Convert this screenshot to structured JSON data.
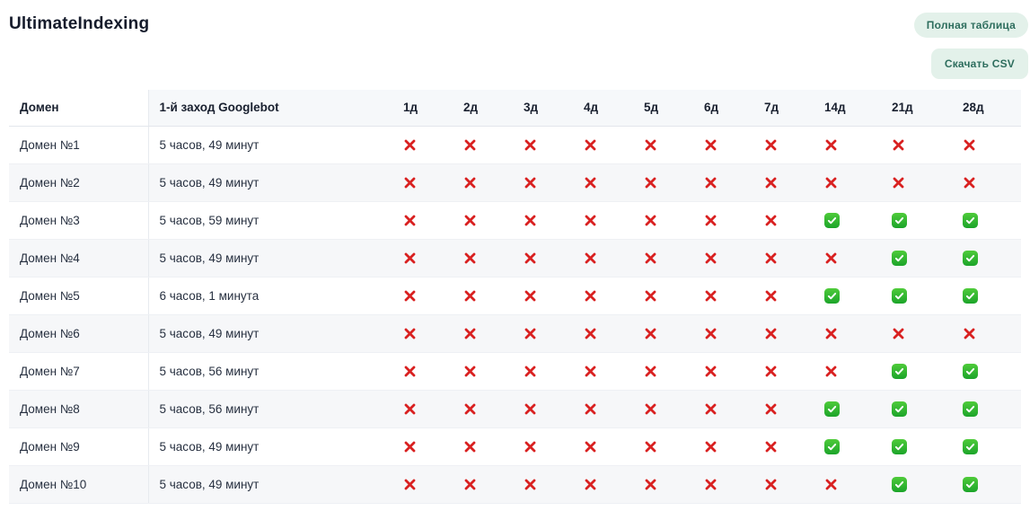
{
  "header": {
    "title": "UltimateIndexing",
    "full_table_button": "Полная таблица",
    "download_csv_button": "Скачать CSV"
  },
  "table": {
    "headers": [
      "Домен",
      "1-й заход Googlebot",
      "1д",
      "2д",
      "3д",
      "4д",
      "5д",
      "6д",
      "7д",
      "14д",
      "21д",
      "28д"
    ],
    "rows": [
      {
        "domain": "Домен №1",
        "first_googlebot_visit": "5 часов, 49 минут",
        "statuses": [
          "cross",
          "cross",
          "cross",
          "cross",
          "cross",
          "cross",
          "cross",
          "cross",
          "cross",
          "cross"
        ]
      },
      {
        "domain": "Домен №2",
        "first_googlebot_visit": "5 часов, 49 минут",
        "statuses": [
          "cross",
          "cross",
          "cross",
          "cross",
          "cross",
          "cross",
          "cross",
          "cross",
          "cross",
          "cross"
        ]
      },
      {
        "domain": "Домен №3",
        "first_googlebot_visit": "5 часов, 59 минут",
        "statuses": [
          "cross",
          "cross",
          "cross",
          "cross",
          "cross",
          "cross",
          "cross",
          "check",
          "check",
          "check"
        ]
      },
      {
        "domain": "Домен №4",
        "first_googlebot_visit": "5 часов, 49 минут",
        "statuses": [
          "cross",
          "cross",
          "cross",
          "cross",
          "cross",
          "cross",
          "cross",
          "cross",
          "check",
          "check"
        ]
      },
      {
        "domain": "Домен №5",
        "first_googlebot_visit": "6 часов, 1 минута",
        "statuses": [
          "cross",
          "cross",
          "cross",
          "cross",
          "cross",
          "cross",
          "cross",
          "check",
          "check",
          "check"
        ]
      },
      {
        "domain": "Домен №6",
        "first_googlebot_visit": "5 часов, 49 минут",
        "statuses": [
          "cross",
          "cross",
          "cross",
          "cross",
          "cross",
          "cross",
          "cross",
          "cross",
          "cross",
          "cross"
        ]
      },
      {
        "domain": "Домен №7",
        "first_googlebot_visit": "5 часов, 56 минут",
        "statuses": [
          "cross",
          "cross",
          "cross",
          "cross",
          "cross",
          "cross",
          "cross",
          "cross",
          "check",
          "check"
        ]
      },
      {
        "domain": "Домен №8",
        "first_googlebot_visit": "5 часов, 56 минут",
        "statuses": [
          "cross",
          "cross",
          "cross",
          "cross",
          "cross",
          "cross",
          "cross",
          "check",
          "check",
          "check"
        ]
      },
      {
        "domain": "Домен №9",
        "first_googlebot_visit": "5 часов, 49 минут",
        "statuses": [
          "cross",
          "cross",
          "cross",
          "cross",
          "cross",
          "cross",
          "cross",
          "check",
          "check",
          "check"
        ]
      },
      {
        "domain": "Домен №10",
        "first_googlebot_visit": "5 часов, 49 минут",
        "statuses": [
          "cross",
          "cross",
          "cross",
          "cross",
          "cross",
          "cross",
          "cross",
          "cross",
          "check",
          "check"
        ]
      }
    ]
  },
  "icons": {
    "cross": "cross-icon",
    "check": "check-icon"
  },
  "colors": {
    "button_bg": "#e3f1ea",
    "button_text": "#2e6e5e",
    "cross_red": "#d92121",
    "check_green_light": "#4ecb3a",
    "check_green_dark": "#1ba42a",
    "header_text": "#19202f",
    "body_text": "#273040",
    "row_alt_bg": "#f6f7f9",
    "header_bg": "#f6f8fa",
    "divider": "#e7eaef"
  }
}
